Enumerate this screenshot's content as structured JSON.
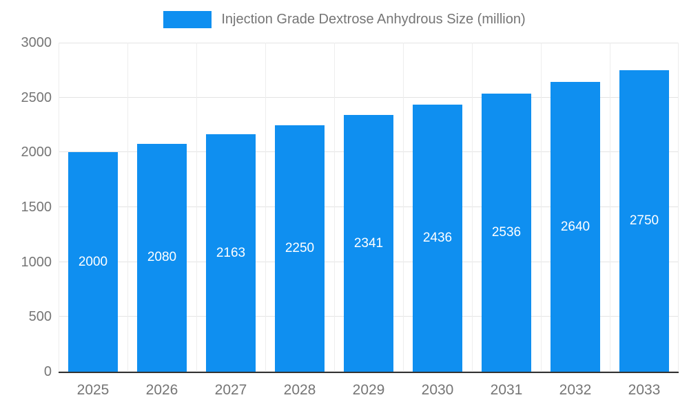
{
  "legend": {
    "label": "Injection Grade Dextrose Anhydrous Size (million)"
  },
  "colors": {
    "bar": "#0f8ff0",
    "axis_text": "#757575",
    "grid_horizontal": "#e3e3e3",
    "grid_vertical": "#ededed",
    "baseline": "#333333",
    "bar_label_text": "#ffffff",
    "background": "#ffffff"
  },
  "chart_data": {
    "type": "bar",
    "title": "Injection Grade Dextrose Anhydrous Size (million)",
    "categories": [
      "2025",
      "2026",
      "2027",
      "2028",
      "2029",
      "2030",
      "2031",
      "2032",
      "2033"
    ],
    "values": [
      2000,
      2080,
      2163,
      2250,
      2341,
      2436,
      2536,
      2640,
      2750
    ],
    "series_name": "Injection Grade Dextrose Anhydrous Size (million)",
    "xlabel": "",
    "ylabel": "",
    "ylim": [
      0,
      3000
    ],
    "yticks": [
      0,
      500,
      1000,
      1500,
      2000,
      2500,
      3000
    ],
    "grid": true,
    "legend_position": "top",
    "bar_labels_inside": true
  }
}
